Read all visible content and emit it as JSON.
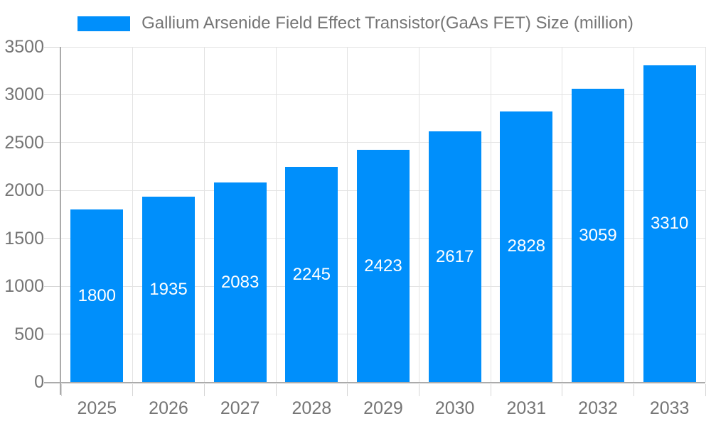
{
  "legend": {
    "label": "Gallium Arsenide Field Effect Transistor(GaAs FET) Size (million)"
  },
  "chart_data": {
    "type": "bar",
    "title": "",
    "categories": [
      "2025",
      "2026",
      "2027",
      "2028",
      "2029",
      "2030",
      "2031",
      "2032",
      "2033"
    ],
    "series": [
      {
        "name": "Gallium Arsenide Field Effect Transistor(GaAs FET) Size (million)",
        "values": [
          1800,
          1935,
          2083,
          2245,
          2423,
          2617,
          2828,
          3059,
          3310
        ]
      }
    ],
    "xlabel": "",
    "ylabel": "",
    "ylim": [
      0,
      3500
    ],
    "ytick_step": 500,
    "ytick_labels": [
      "0",
      "500",
      "1000",
      "1500",
      "2000",
      "2500",
      "3000",
      "3500"
    ],
    "grid": true,
    "legend_position": "top",
    "value_labels": "inside-center",
    "colors": {
      "bar": "#008FFB",
      "value_label": "#FFFFFF",
      "axis_label": "#757575",
      "gridline": "#E3E3E3",
      "axis_line": "#ABABAB"
    }
  }
}
